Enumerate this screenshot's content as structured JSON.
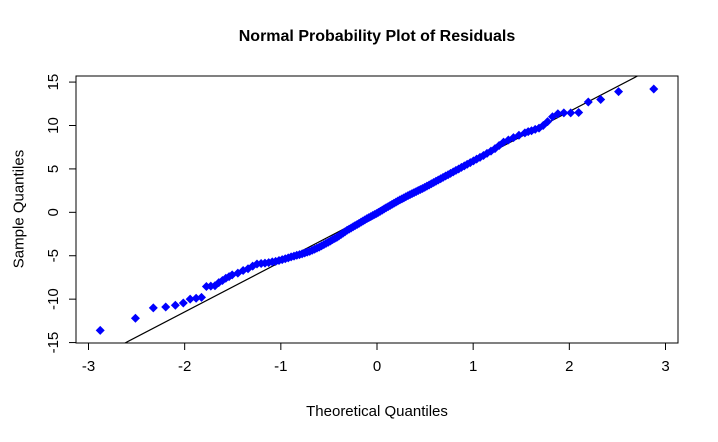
{
  "figure": {
    "background": "#ffffff"
  },
  "chart_data": {
    "type": "scatter",
    "subtype": "normal-qq-plot",
    "title": "Normal Probability Plot of Residuals",
    "xlabel": "Theoretical Quantiles",
    "ylabel": "Sample Quantiles",
    "xlim": [
      -3.13,
      3.13
    ],
    "ylim": [
      -15.05,
      15.7
    ],
    "x_ticks": [
      -3,
      -2,
      -1,
      0,
      1,
      2,
      3
    ],
    "y_ticks": [
      -15,
      -10,
      -5,
      0,
      5,
      10,
      15
    ],
    "grid": false,
    "legend": null,
    "point_color": "#0000ff",
    "marker": "diamond",
    "reference_line": {
      "slope": 5.77,
      "intercept": 0.07,
      "color": "#000000"
    },
    "points": [
      [
        -2.878,
        -13.6
      ],
      [
        -2.512,
        -12.2
      ],
      [
        -2.326,
        -11.0
      ],
      [
        -2.197,
        -10.9
      ],
      [
        -2.097,
        -10.7
      ],
      [
        -2.014,
        -10.45
      ],
      [
        -1.943,
        -10.0
      ],
      [
        -1.881,
        -9.9
      ],
      [
        -1.825,
        -9.8
      ],
      [
        -1.774,
        -8.55
      ],
      [
        -1.728,
        -8.5
      ],
      [
        -1.685,
        -8.45
      ],
      [
        -1.645,
        -8.1
      ],
      [
        -1.607,
        -7.85
      ],
      [
        -1.572,
        -7.6
      ],
      [
        -1.538,
        -7.4
      ],
      [
        -1.506,
        -7.2
      ],
      [
        -1.447,
        -7.0
      ],
      [
        -1.392,
        -6.7
      ],
      [
        -1.341,
        -6.5
      ],
      [
        -1.293,
        -6.2
      ],
      [
        -1.248,
        -5.95
      ],
      [
        -1.205,
        -5.9
      ],
      [
        -1.165,
        -5.85
      ],
      [
        -1.126,
        -5.8
      ],
      [
        -1.089,
        -5.7
      ],
      [
        -1.054,
        -5.65
      ],
      [
        -1.019,
        -5.55
      ],
      [
        -0.986,
        -5.45
      ],
      [
        -0.954,
        -5.35
      ],
      [
        -0.923,
        -5.25
      ],
      [
        -0.893,
        -5.13
      ],
      [
        -0.863,
        -5.04
      ],
      [
        -0.834,
        -4.95
      ],
      [
        -0.806,
        -4.87
      ],
      [
        -0.779,
        -4.78
      ],
      [
        -0.752,
        -4.68
      ],
      [
        -0.726,
        -4.59
      ],
      [
        -0.7,
        -4.5
      ],
      [
        -0.674,
        -4.37
      ],
      [
        -0.649,
        -4.25
      ],
      [
        -0.625,
        -4.13
      ],
      [
        -0.601,
        -4.01
      ],
      [
        -0.577,
        -3.86
      ],
      [
        -0.553,
        -3.72
      ],
      [
        -0.53,
        -3.58
      ],
      [
        -0.507,
        -3.44
      ],
      [
        -0.484,
        -3.3
      ],
      [
        -0.462,
        -3.15
      ],
      [
        -0.44,
        -3.01
      ],
      [
        -0.418,
        -2.89
      ],
      [
        -0.396,
        -2.72
      ],
      [
        -0.374,
        -2.56
      ],
      [
        -0.353,
        -2.4
      ],
      [
        -0.332,
        -2.24
      ],
      [
        -0.311,
        -2.07
      ],
      [
        -0.29,
        -1.94
      ],
      [
        -0.269,
        -1.8
      ],
      [
        -0.248,
        -1.66
      ],
      [
        -0.228,
        -1.53
      ],
      [
        -0.207,
        -1.4
      ],
      [
        -0.187,
        -1.27
      ],
      [
        -0.166,
        -1.13
      ],
      [
        -0.146,
        -1.0
      ],
      [
        -0.126,
        -0.87
      ],
      [
        -0.105,
        -0.73
      ],
      [
        -0.085,
        -0.61
      ],
      [
        -0.065,
        -0.49
      ],
      [
        -0.045,
        -0.37
      ],
      [
        -0.025,
        -0.25
      ],
      [
        -0.005,
        -0.13
      ],
      [
        0.015,
        0.0
      ],
      [
        0.035,
        0.13
      ],
      [
        0.055,
        0.26
      ],
      [
        0.075,
        0.39
      ],
      [
        0.095,
        0.52
      ],
      [
        0.116,
        0.65
      ],
      [
        0.136,
        0.78
      ],
      [
        0.156,
        0.91
      ],
      [
        0.176,
        1.05
      ],
      [
        0.197,
        1.18
      ],
      [
        0.217,
        1.3
      ],
      [
        0.238,
        1.43
      ],
      [
        0.259,
        1.55
      ],
      [
        0.279,
        1.67
      ],
      [
        0.3,
        1.8
      ],
      [
        0.322,
        1.92
      ],
      [
        0.343,
        2.04
      ],
      [
        0.364,
        2.15
      ],
      [
        0.385,
        2.27
      ],
      [
        0.407,
        2.39
      ],
      [
        0.429,
        2.51
      ],
      [
        0.451,
        2.63
      ],
      [
        0.473,
        2.75
      ],
      [
        0.496,
        2.88
      ],
      [
        0.519,
        3.01
      ],
      [
        0.542,
        3.15
      ],
      [
        0.565,
        3.29
      ],
      [
        0.589,
        3.43
      ],
      [
        0.613,
        3.58
      ],
      [
        0.637,
        3.72
      ],
      [
        0.662,
        3.87
      ],
      [
        0.687,
        4.02
      ],
      [
        0.713,
        4.18
      ],
      [
        0.739,
        4.33
      ],
      [
        0.765,
        4.49
      ],
      [
        0.793,
        4.66
      ],
      [
        0.821,
        4.83
      ],
      [
        0.849,
        4.99
      ],
      [
        0.878,
        5.17
      ],
      [
        0.908,
        5.35
      ],
      [
        0.938,
        5.53
      ],
      [
        0.97,
        5.72
      ],
      [
        1.003,
        5.92
      ],
      [
        1.036,
        6.12
      ],
      [
        1.071,
        6.33
      ],
      [
        1.107,
        6.54
      ],
      [
        1.144,
        6.79
      ],
      [
        1.185,
        7.05
      ],
      [
        1.227,
        7.33
      ],
      [
        1.27,
        7.7
      ],
      [
        1.316,
        8.08
      ],
      [
        1.366,
        8.33
      ],
      [
        1.419,
        8.6
      ],
      [
        1.476,
        8.88
      ],
      [
        1.538,
        9.15
      ],
      [
        1.572,
        9.3
      ],
      [
        1.607,
        9.4
      ],
      [
        1.645,
        9.55
      ],
      [
        1.685,
        9.7
      ],
      [
        1.728,
        10.0
      ],
      [
        1.774,
        10.45
      ],
      [
        1.825,
        11.0
      ],
      [
        1.881,
        11.35
      ],
      [
        1.943,
        11.45
      ],
      [
        2.014,
        11.45
      ],
      [
        2.097,
        11.5
      ],
      [
        2.197,
        12.7
      ],
      [
        2.326,
        13.0
      ],
      [
        2.512,
        13.9
      ],
      [
        2.878,
        14.2
      ]
    ]
  }
}
